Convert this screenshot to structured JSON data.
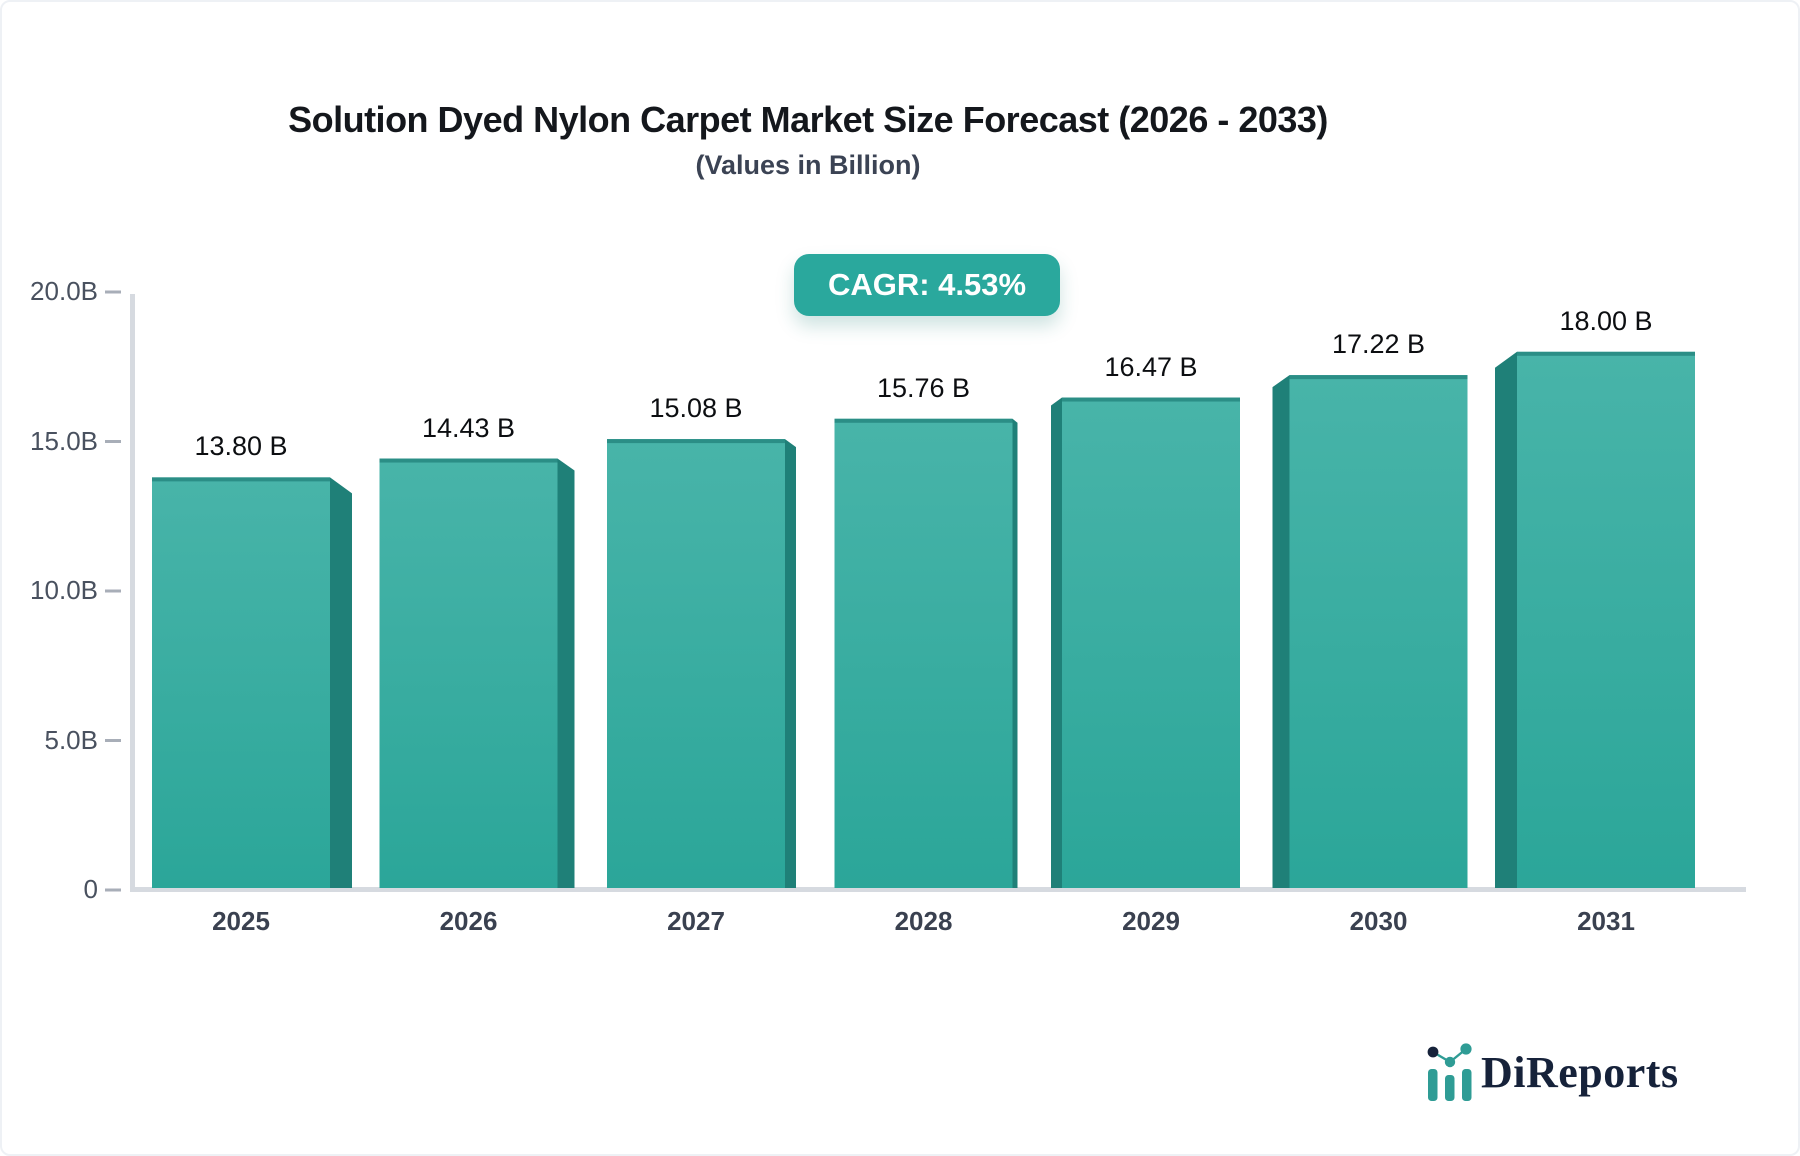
{
  "chart_data": {
    "type": "bar",
    "title": "Solution Dyed Nylon Carpet Market Size Forecast (2026 - 2033)",
    "subtitle": "(Values in Billion)",
    "cagr_badge": "CAGR: 4.53%",
    "categories": [
      "2025",
      "2026",
      "2027",
      "2028",
      "2029",
      "2030",
      "2031"
    ],
    "values": [
      13.8,
      14.43,
      15.08,
      15.76,
      16.47,
      17.22,
      18.0
    ],
    "value_labels": [
      "13.80 B",
      "14.43 B",
      "15.08 B",
      "15.76 B",
      "16.47 B",
      "17.22 B",
      "18.00 B"
    ],
    "yticks": [
      {
        "value": 20,
        "label": "20.0B"
      },
      {
        "value": 15,
        "label": "15.0B"
      },
      {
        "value": 10,
        "label": "10.0B"
      },
      {
        "value": 5,
        "label": "5.0B"
      },
      {
        "value": 0,
        "label": "0"
      }
    ],
    "ylim": [
      0,
      20
    ],
    "xlabel": "",
    "ylabel": "",
    "grid": false,
    "legend": false,
    "bar_style": "pseudo-3d-column"
  },
  "branding": {
    "name": "DiReports"
  },
  "colors": {
    "accent": "#2aa89d",
    "bar_face_top": "#48b4a9",
    "bar_face_bottom": "#2ba699",
    "bar_side": "#1f8078",
    "bar_top_edge": "#2b8e86",
    "axis_line": "#d6dae0",
    "tick_dash": "#a8aeb8",
    "title_text": "#14171c",
    "subtitle_text": "#3b4354",
    "value_text": "#0c0e11",
    "axis_text": "#49515f",
    "brand_navy": "#16223a",
    "brand_teal": "#2f9c95"
  }
}
